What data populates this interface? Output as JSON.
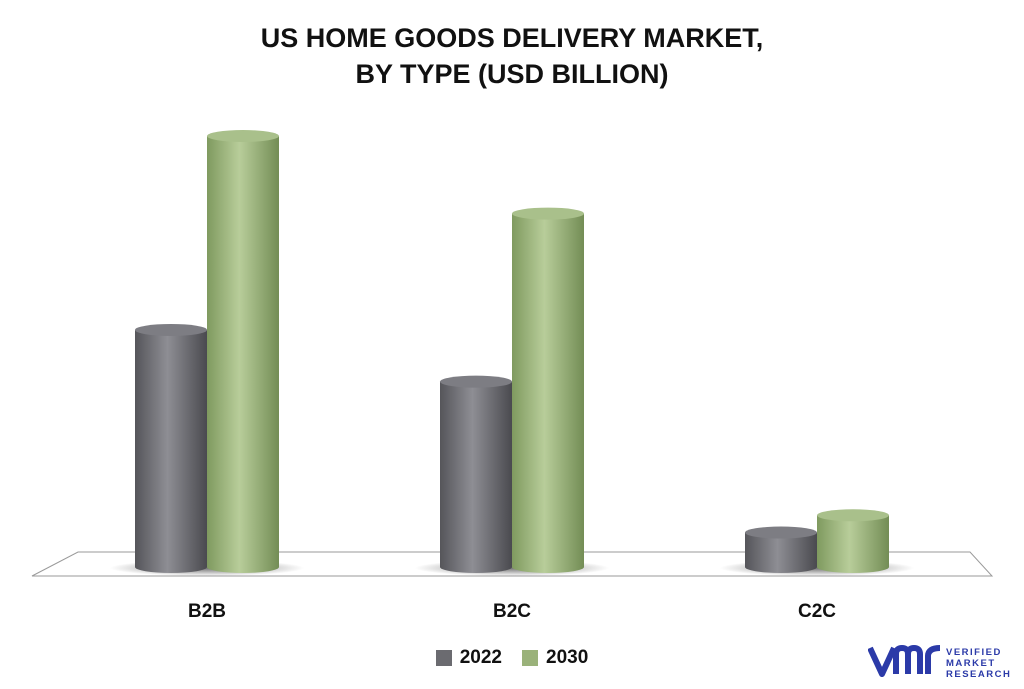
{
  "title_line1": "US HOME GOODS DELIVERY MARKET,",
  "title_line2": "BY TYPE (USD BILLION)",
  "logo": {
    "brand": [
      "VERIFIED",
      "MARKET",
      "RESEARCH"
    ],
    "registered": "®"
  },
  "chart_data": {
    "type": "bar",
    "title": "US HOME GOODS DELIVERY MARKET, BY TYPE (USD BILLION)",
    "categories": [
      "B2B",
      "B2C",
      "C2C"
    ],
    "series": [
      {
        "name": "2022",
        "values": [
          55,
          43,
          8
        ],
        "color": "#6b6b70"
      },
      {
        "name": "2030",
        "values": [
          100,
          82,
          12
        ],
        "color": "#9ab27a"
      }
    ],
    "ylim": [
      0,
      100
    ],
    "grid": false,
    "legend": "bottom"
  }
}
